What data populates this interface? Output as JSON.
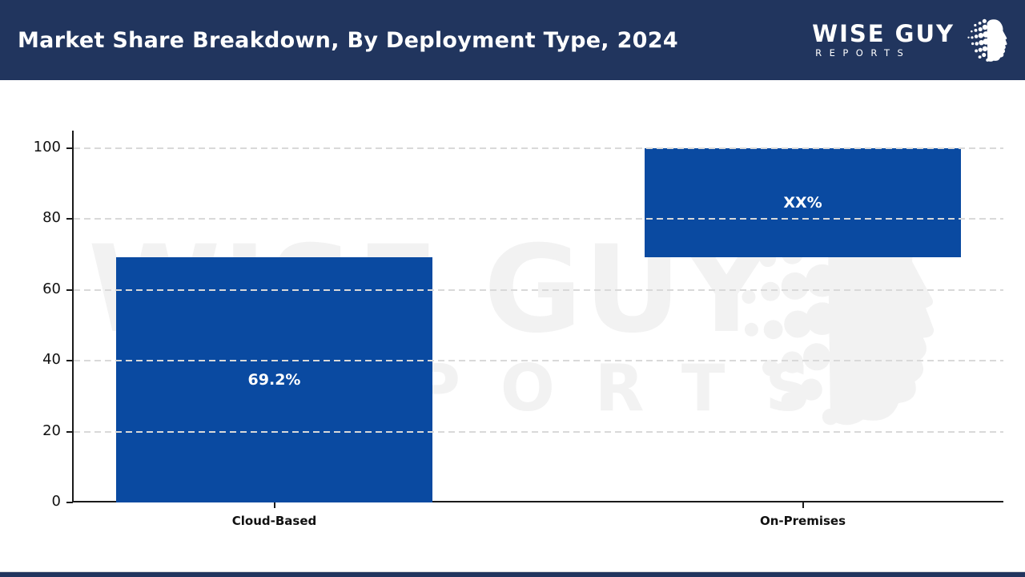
{
  "header": {
    "logo": {
      "line1": "WISE GUY",
      "line2": "REPORTS"
    }
  },
  "watermark": {
    "line1": "WISE GUY",
    "line2": "REPORTS"
  },
  "chart_data": {
    "type": "bar",
    "title": "Market Share Breakdown, By Deployment Type, 2024",
    "categories": [
      "Cloud-Based",
      "On-Premises"
    ],
    "bars": [
      {
        "category": "Cloud-Based",
        "from": 0,
        "to": 69.2,
        "label": "69.2%"
      },
      {
        "category": "On-Premises",
        "from": 69.2,
        "to": 100,
        "label": "XX%"
      }
    ],
    "ylim": [
      0,
      100
    ],
    "yticks": [
      0,
      20,
      40,
      60,
      80,
      100
    ],
    "xlabel": "",
    "ylabel": "",
    "grid": "horizontal-dashed",
    "legend": "none",
    "bar_color": "#0a4aa1",
    "bar_label_color": "#ffffff",
    "bar_centers_frac": [
      0.2154,
      0.7829
    ],
    "bar_width_frac": 0.3397
  }
}
